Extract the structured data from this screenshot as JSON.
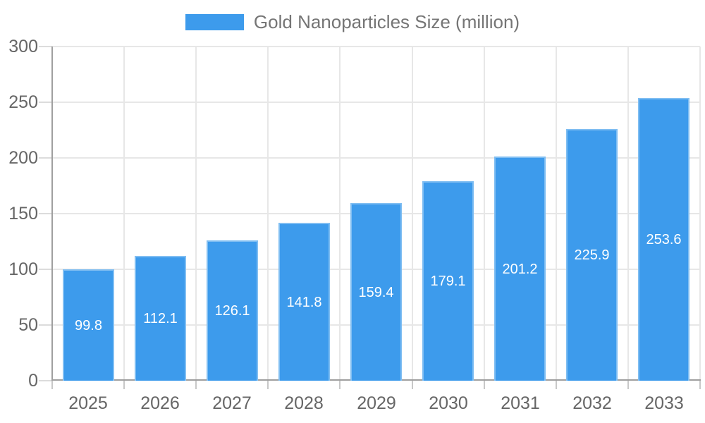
{
  "chart_data": {
    "type": "bar",
    "title": "Gold Nanoparticles Size (million)",
    "categories": [
      "2025",
      "2026",
      "2027",
      "2028",
      "2029",
      "2030",
      "2031",
      "2032",
      "2033"
    ],
    "values": [
      99.8,
      112.1,
      126.1,
      141.8,
      159.4,
      179.1,
      201.2,
      225.9,
      253.6
    ],
    "yticks": [
      0,
      50,
      100,
      150,
      200,
      250,
      300
    ],
    "ylim": [
      0,
      300
    ],
    "xlabel": "",
    "ylabel": "",
    "grid": true,
    "legend_position": "top",
    "value_label_position": "inside-center"
  },
  "colors": {
    "bar": "#3d9bec",
    "value_label": "#ffffff",
    "axis_text": "#666666",
    "legend_text": "#757575",
    "grid_line": "#e7e7e7",
    "axis_line": "#9f9f9f"
  }
}
